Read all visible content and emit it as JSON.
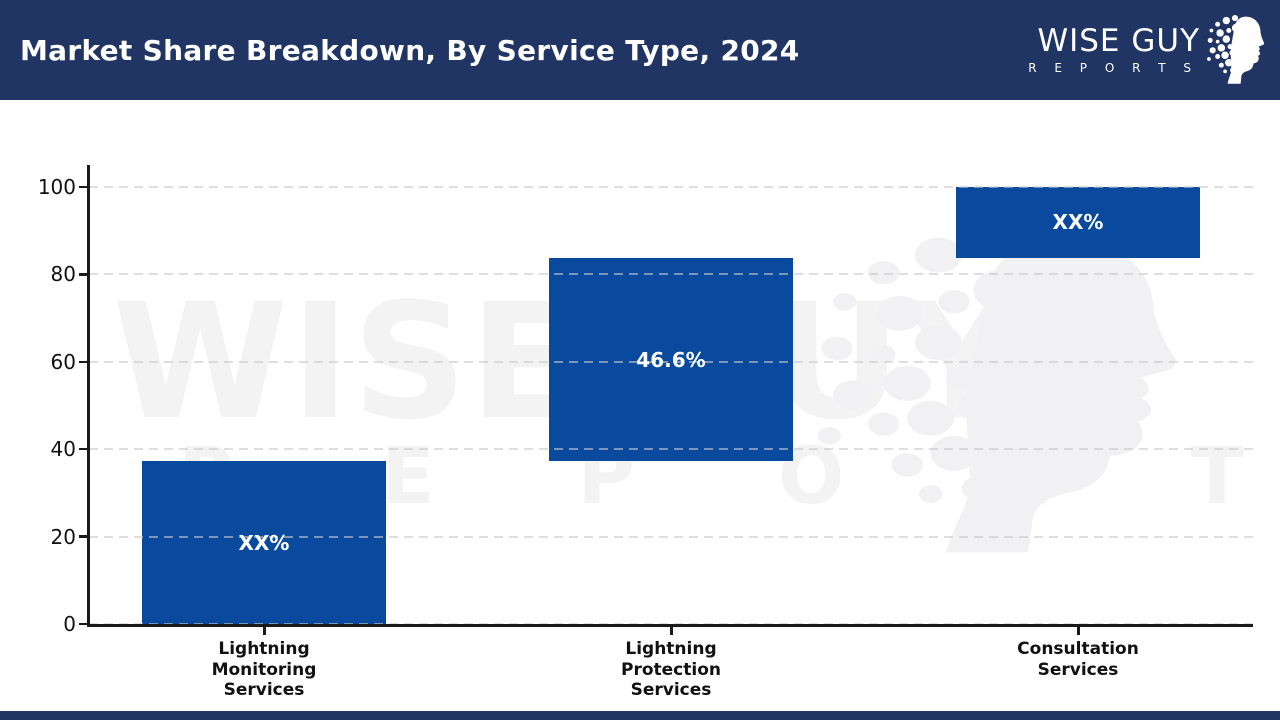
{
  "header": {
    "title": "Market Share Breakdown, By Service Type, 2024",
    "logo": {
      "wordmark": "WISE GUY",
      "subtext": "R E P O R T S"
    },
    "background_color": "#203563",
    "text_color": "#ffffff"
  },
  "watermark": {
    "wordmark": "WISE GUY",
    "subtext": "R E P O R T S"
  },
  "footer": {
    "background_color": "#203563"
  },
  "chart_data": {
    "type": "bar",
    "subtype": "waterfall",
    "title": "Market Share Breakdown, By Service Type, 2024",
    "unit": "%",
    "ylim": [
      0,
      100
    ],
    "yticks": [
      0,
      20,
      40,
      60,
      80,
      100
    ],
    "grid": "horizontal dashed, drawn over bars",
    "legend": "none",
    "bar_color": "#0a4a9e",
    "label_color": "#ffffff",
    "categories": [
      "Lightning Monitoring Services",
      "Lightning Protection Services",
      "Consultation Services"
    ],
    "bars": [
      {
        "category": "Lightning Monitoring Services",
        "label": "XX%",
        "start": 0,
        "end": 37.2,
        "value_estimate": 37.2
      },
      {
        "category": "Lightning Protection Services",
        "label": "46.6%",
        "start": 37.2,
        "end": 83.8,
        "value_estimate": 46.6
      },
      {
        "category": "Consultation Services",
        "label": "XX%",
        "start": 83.8,
        "end": 100,
        "value_estimate": 16.2
      }
    ]
  }
}
